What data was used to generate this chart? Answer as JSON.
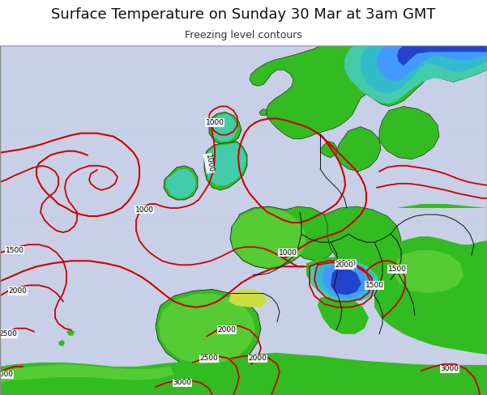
{
  "title": "Surface Temperature on Sunday 30 Mar at 3am GMT",
  "subtitle": "Freezing level contours",
  "title_fontsize": 13,
  "subtitle_fontsize": 9,
  "fig_width": 6.01,
  "fig_height": 4.88,
  "dpi": 100,
  "header_bg": "#ffffff",
  "header_line_color": "#aaaaaa",
  "map_ocean": "#c8d0e8",
  "map_land_low": "#33bb22",
  "map_land_mid": "#55cc33",
  "map_land_high": "#88dd44",
  "map_teal": "#44ccaa",
  "map_cyan": "#33bbcc",
  "map_blue": "#4499ff",
  "map_dark_blue": "#2244cc",
  "map_yellow": "#ccdd44",
  "map_green_dark": "#228833",
  "contour_color": "#cc0000",
  "border_color": "#111111",
  "label_bg": "#ffffff",
  "label_fontsize": 6.5
}
